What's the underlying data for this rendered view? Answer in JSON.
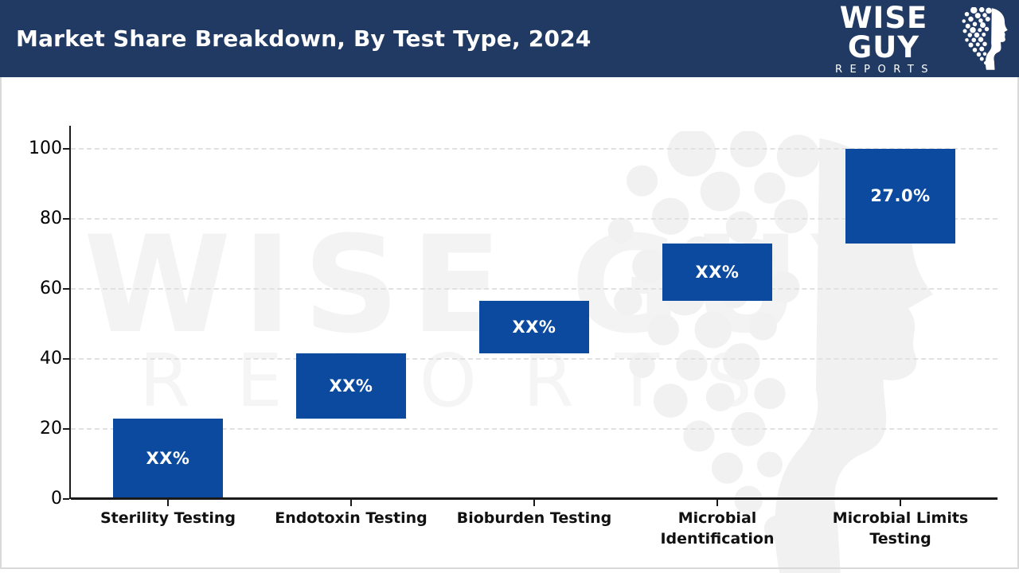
{
  "header": {
    "title": "Market Share Breakdown, By Test Type, 2024",
    "bg_color": "#213a63",
    "logo": {
      "line1": "WISE GUY",
      "line2": "REPORTS"
    }
  },
  "watermark": {
    "line1": "WISE GUY",
    "line2": "REPORTS"
  },
  "chart_data": {
    "type": "bar",
    "subtype": "waterfall",
    "title": "Market Share Breakdown, By Test Type, 2024",
    "categories": [
      "Sterility Testing",
      "Endotoxin Testing",
      "Bioburden Testing",
      "Microbial\nIdentification",
      "Microbial Limits\nTesting"
    ],
    "segments": [
      {
        "category": "Sterility Testing",
        "start": 0,
        "end": 23,
        "label": "XX%"
      },
      {
        "category": "Endotoxin Testing",
        "start": 23,
        "end": 41.5,
        "label": "XX%"
      },
      {
        "category": "Bioburden Testing",
        "start": 41.5,
        "end": 56.5,
        "label": "XX%"
      },
      {
        "category": "Microbial Identification",
        "start": 56.5,
        "end": 73,
        "label": "XX%"
      },
      {
        "category": "Microbial Limits Testing",
        "start": 73,
        "end": 100,
        "label": "27.0%"
      }
    ],
    "ylim": [
      0,
      100
    ],
    "yticks": [
      0,
      20,
      40,
      60,
      80,
      100
    ],
    "xlabel": "",
    "ylabel": "",
    "legend": "none",
    "grid": "horizontal-dashed",
    "bar_color": "#0b4a9e",
    "bar_label_color": "#ffffff",
    "axis_color": "#1a1a1a"
  }
}
